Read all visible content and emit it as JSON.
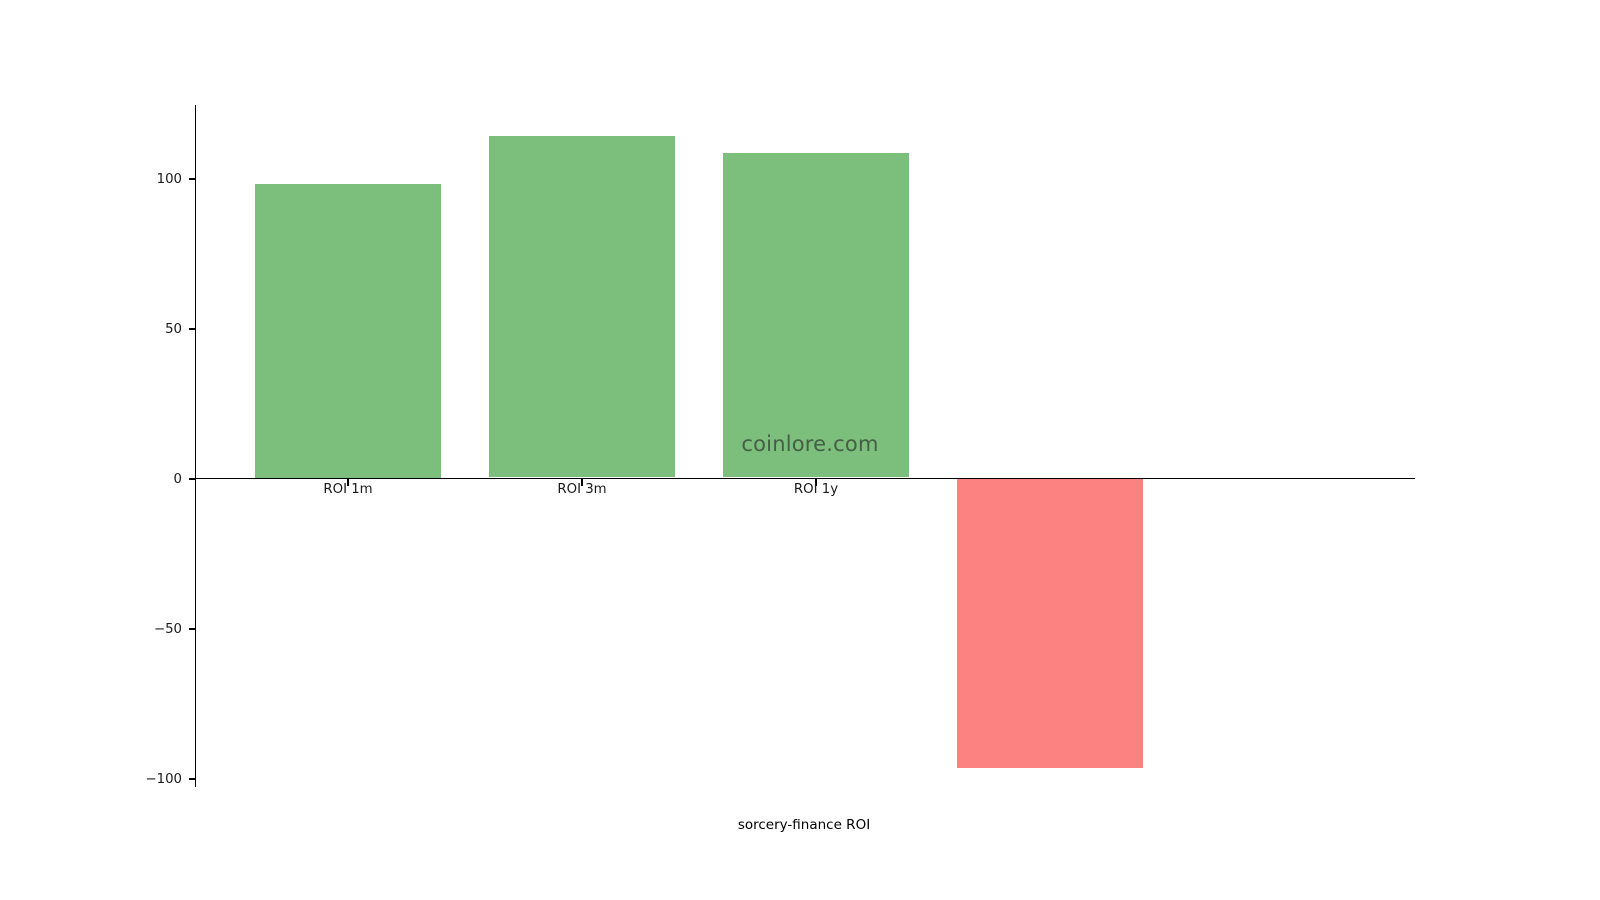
{
  "page": {
    "background": "#ffffff"
  },
  "chart_data": {
    "type": "bar",
    "title": "",
    "xlabel": "sorcery-finance ROI",
    "ylabel": "",
    "categories": [
      "ROI 1m",
      "ROI 3m",
      "ROI 1y",
      ""
    ],
    "values": [
      98,
      113.7,
      108.3,
      -96.3
    ],
    "positive_color": "#7CBE7B",
    "negative_color": "#FC8181",
    "axis_color": "#000000",
    "tick_text_color": "#1a1a1a",
    "yticks": [
      100,
      50,
      0,
      -50,
      -100
    ],
    "ytick_labels": [
      "100",
      "50",
      "0",
      "−50",
      "−100"
    ],
    "ylim": [
      -107,
      124.5
    ],
    "grid": false,
    "legend_position": "none",
    "watermark": "coinlore.com"
  }
}
